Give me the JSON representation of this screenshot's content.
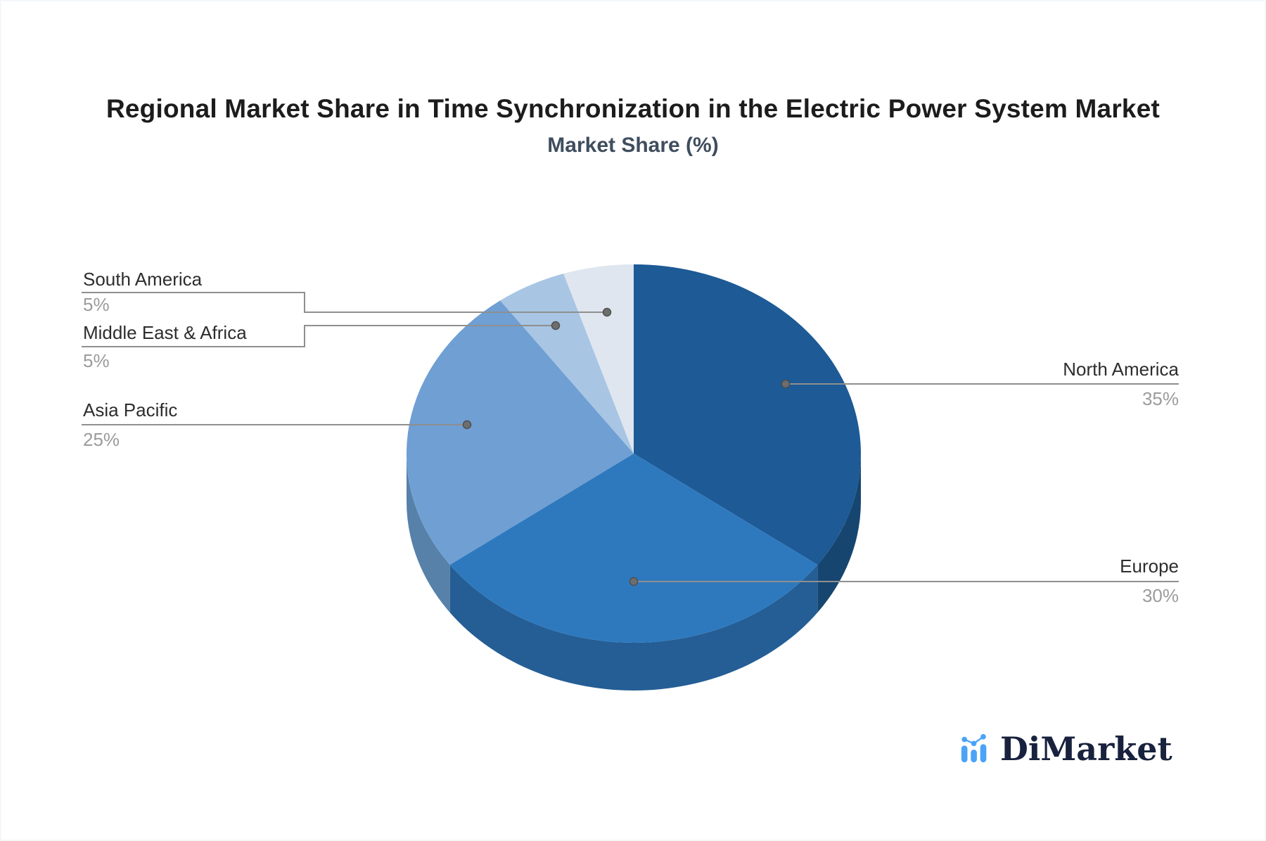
{
  "header": {
    "title": "Regional Market Share in Time Synchronization in the Electric Power System Market",
    "subtitle": "Market Share (%)"
  },
  "chart_data": {
    "type": "pie",
    "title": "Regional Market Share in Time Synchronization in the Electric Power System Market",
    "subtitle": "Market Share (%)",
    "unit": "%",
    "effect": "3d",
    "start_angle": "12 o'clock",
    "direction": "clockwise",
    "labels": [
      "North America",
      "Europe",
      "Asia Pacific",
      "Middle East & Africa",
      "South America"
    ],
    "values": [
      35,
      30,
      25,
      5,
      5
    ],
    "display_values": [
      "35%",
      "30%",
      "25%",
      "5%",
      "5%"
    ],
    "slice_colors": [
      "#1D5A96",
      "#2E79BE",
      "#6F9FD3",
      "#A8C5E3",
      "#DFE6EF"
    ],
    "slice_side_colors": [
      "#164670",
      "#245E95",
      "#5781A9",
      "#7E95AC",
      "#A7ADB8"
    ],
    "leader_line_color": "#8F8F8F",
    "leader_dot_color": "#6E6E6E",
    "label_color": "#2D2D2D",
    "value_color": "#9B9B9B",
    "legend_position": "callout labels"
  },
  "logo": {
    "text": "DiMarket",
    "icon": "bar-line-chart-icon",
    "icon_color": "#4BA3F7",
    "text_color": "#18223E"
  }
}
